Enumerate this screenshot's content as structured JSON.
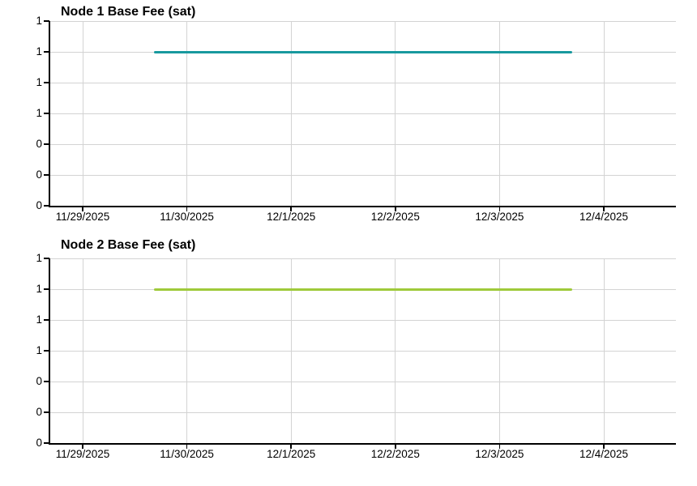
{
  "colors": {
    "background": "#ffffff",
    "gridline": "#d3d3d3",
    "axis": "#000000",
    "text": "#000000",
    "node1_line": "#18999E",
    "node2_line": "#9FCA3A"
  },
  "charts": [
    {
      "title": "Node 1 Base Fee (sat)",
      "line_color": "#18999E",
      "y_tick_labels": [
        "1",
        "1",
        "1",
        "1",
        "0",
        "0",
        "0"
      ],
      "x_tick_labels": [
        "11/29/2025",
        "11/30/2025",
        "12/1/2025",
        "12/2/2025",
        "12/3/2025",
        "12/4/2025"
      ]
    },
    {
      "title": "Node 2 Base Fee (sat)",
      "line_color": "#9FCA3A",
      "y_tick_labels": [
        "1",
        "1",
        "1",
        "1",
        "0",
        "0",
        "0"
      ],
      "x_tick_labels": [
        "11/29/2025",
        "11/30/2025",
        "12/1/2025",
        "12/2/2025",
        "12/3/2025",
        "12/4/2025"
      ]
    }
  ],
  "chart_data": [
    {
      "type": "line",
      "title": "Node 1 Base Fee (sat)",
      "xlabel": "",
      "ylabel": "",
      "x_tick_labels": [
        "11/29/2025",
        "11/30/2025",
        "12/1/2025",
        "12/2/2025",
        "12/3/2025",
        "12/4/2025"
      ],
      "y_tick_labels_displayed": [
        "1",
        "1",
        "1",
        "1",
        "0",
        "0",
        "0"
      ],
      "y_tick_values": [
        1.2,
        1.0,
        0.8,
        0.6,
        0.4,
        0.2,
        0.0
      ],
      "ylim": [
        0,
        1.2
      ],
      "grid": true,
      "legend": "none",
      "series": [
        {
          "name": "Node 1 Base Fee",
          "color": "#18999E",
          "shape": "constant horizontal line",
          "value": 1,
          "x_start": "11/29/2025 ~16:30",
          "x_end": "12/3/2025 ~16:30"
        }
      ]
    },
    {
      "type": "line",
      "title": "Node 2 Base Fee (sat)",
      "xlabel": "",
      "ylabel": "",
      "x_tick_labels": [
        "11/29/2025",
        "11/30/2025",
        "12/1/2025",
        "12/2/2025",
        "12/3/2025",
        "12/4/2025"
      ],
      "y_tick_labels_displayed": [
        "1",
        "1",
        "1",
        "1",
        "0",
        "0",
        "0"
      ],
      "y_tick_values": [
        1.2,
        1.0,
        0.8,
        0.6,
        0.4,
        0.2,
        0.0
      ],
      "ylim": [
        0,
        1.2
      ],
      "grid": true,
      "legend": "none",
      "series": [
        {
          "name": "Node 2 Base Fee",
          "color": "#9FCA3A",
          "shape": "constant horizontal line",
          "value": 1,
          "x_start": "11/29/2025 ~16:30",
          "x_end": "12/3/2025 ~16:30"
        }
      ]
    }
  ]
}
